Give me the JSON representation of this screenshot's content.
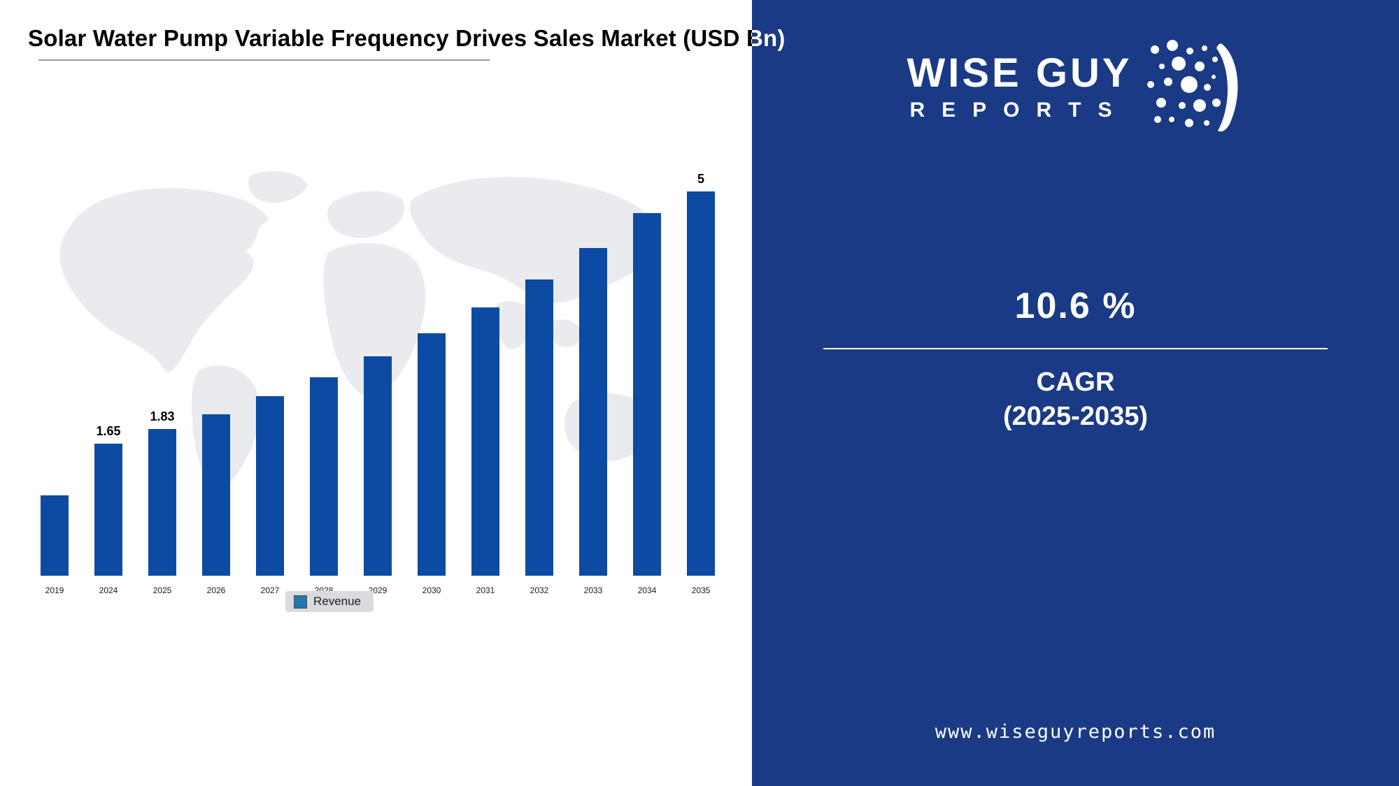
{
  "title": "Solar Water Pump Variable Frequency Drives Sales Market (USD Bn)",
  "panel": {
    "bg_color": "#1a3a85",
    "logo": {
      "line1": "WISE GUY",
      "line2": "REPORTS"
    },
    "cagr_value": "10.6 %",
    "cagr_label_line1": "CAGR",
    "cagr_label_line2": "(2025-2035)",
    "website": "www.wiseguyreports.com"
  },
  "legend": {
    "label": "Revenue",
    "swatch_color": "#2478ad"
  },
  "chart_data": {
    "type": "bar",
    "title": "Solar Water Pump Variable Frequency Drives Sales Market (USD Bn)",
    "categories": [
      "2019",
      "2024",
      "2025",
      "2026",
      "2027",
      "2028",
      "2029",
      "2030",
      "2031",
      "2032",
      "2033",
      "2034",
      "2035"
    ],
    "values": [
      1.0,
      1.65,
      1.83,
      2.02,
      2.24,
      2.48,
      2.74,
      3.03,
      3.35,
      3.7,
      4.09,
      4.53,
      5.0
    ],
    "data_labels": [
      "",
      "1.65",
      "1.83",
      "",
      "",
      "",
      "",
      "",
      "",
      "",
      "",
      "",
      "5"
    ],
    "series_name": "Revenue",
    "xlabel": "",
    "ylabel": "",
    "ylim": [
      0,
      5.3
    ],
    "grid": false,
    "legend_position": "bottom",
    "bar_color": "#0d4aa3"
  }
}
